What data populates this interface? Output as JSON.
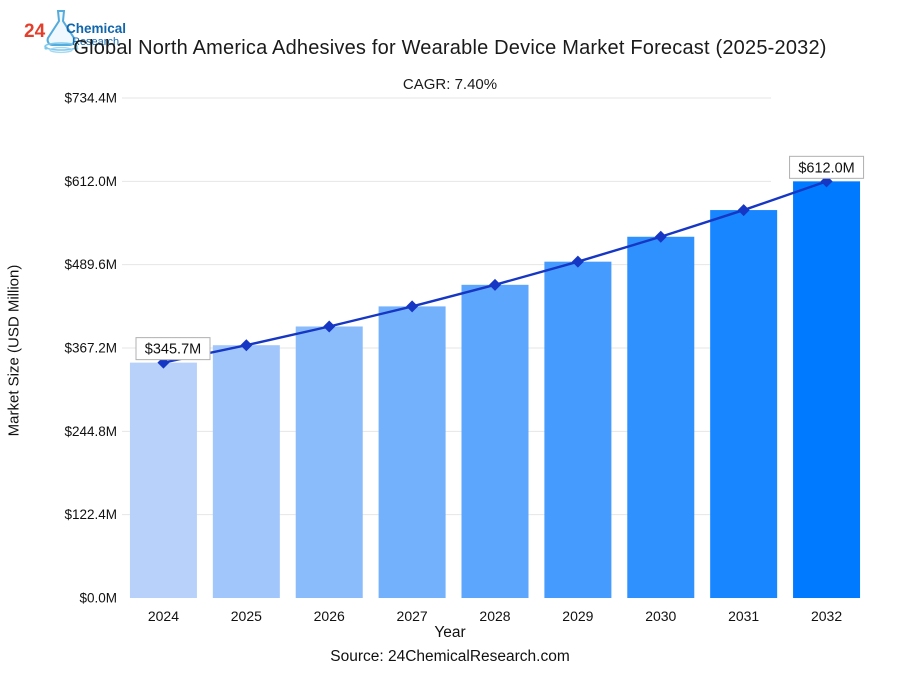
{
  "logo": {
    "number": "24",
    "name_top": "Chemical",
    "name_bottom": "Research",
    "number_color": "#e2402c",
    "text_color": "#1266ab",
    "flask_color": "#55abdc"
  },
  "chart_data": {
    "type": "bar",
    "title": "Global North America Adhesives for Wearable Device Market Forecast (2025-2032)",
    "subtitle": "CAGR: 7.40%",
    "categories": [
      "2024",
      "2025",
      "2026",
      "2027",
      "2028",
      "2029",
      "2030",
      "2031",
      "2032"
    ],
    "series": [
      {
        "name": "Market Size bars",
        "type": "bar",
        "values": [
          345.7,
          371.3,
          398.8,
          428.3,
          460.0,
          494.0,
          530.6,
          569.8,
          612.0
        ]
      },
      {
        "name": "Market Size trend line",
        "type": "line",
        "values": [
          345.7,
          371.3,
          398.8,
          428.3,
          460.0,
          494.0,
          530.6,
          569.8,
          612.0
        ]
      }
    ],
    "xlabel": "Year",
    "ylabel": "Market Size (USD Million)",
    "ylim": [
      0,
      734.4
    ],
    "yticks": [
      0,
      122.4,
      244.8,
      367.2,
      489.6,
      612.0,
      734.4
    ],
    "ytick_labels": [
      "$0.0M",
      "$122.4M",
      "$244.8M",
      "$367.2M",
      "$489.6M",
      "$612.0M",
      "$734.4M"
    ],
    "grid": true,
    "legend_position": "none",
    "bar_colors": [
      "#b8d1fb",
      "#a1c6fc",
      "#8abcfc",
      "#73b1fd",
      "#5ca6fd",
      "#459bfe",
      "#2e91fe",
      "#1786ff",
      "#007bff"
    ],
    "line_color": "#1636c4",
    "annotation_box_border": "#b0b0b0",
    "annotations": [
      {
        "category": "2024",
        "text": "$345.7M"
      },
      {
        "category": "2032",
        "text": "$612.0M"
      }
    ]
  },
  "footer": {
    "source": "Source: 24ChemicalResearch.com"
  }
}
